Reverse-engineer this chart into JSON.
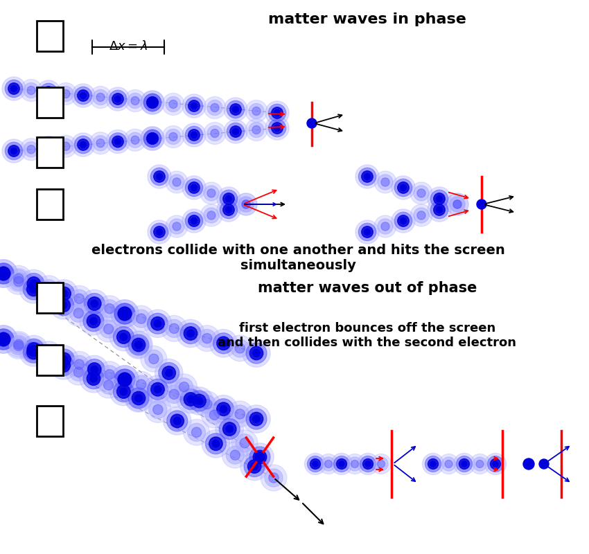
{
  "bg_color": "#ffffff",
  "title_in_phase": "matter waves in phase",
  "title_collide": "electrons collide with one another and hits the screen\nsimultaneously",
  "title_out_phase": "matter waves out of phase",
  "title_bounce": "first electron bounces off the screen\nand then collides with the second electron",
  "electron_dark": "#0000dd",
  "electron_mid": "#5555ff",
  "electron_light": "#aaaaff",
  "screen_color": "#ff0000",
  "arrow_black": "#000000",
  "arrow_red": "#ff0000",
  "arrow_blue": "#0000cc"
}
